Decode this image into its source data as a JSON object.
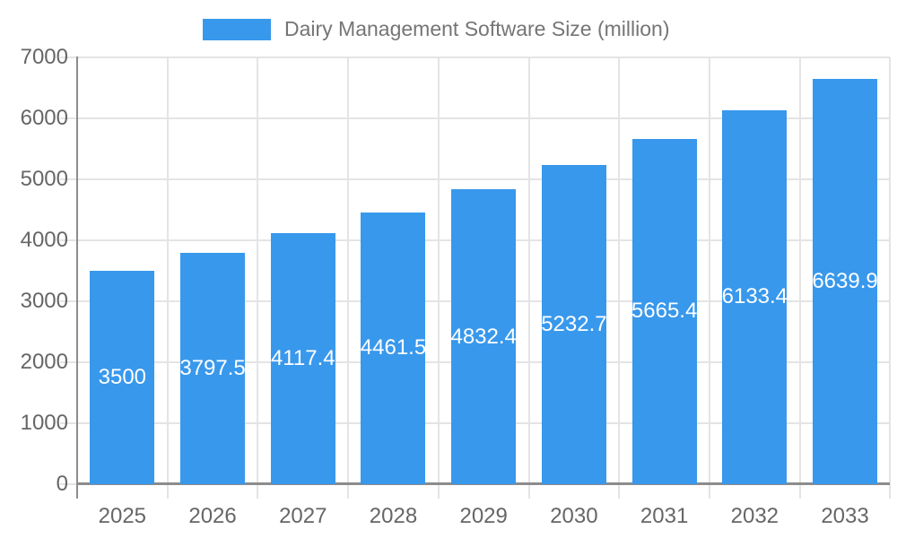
{
  "chart_data": {
    "type": "bar",
    "title": "Dairy Management Software Size (million)",
    "categories": [
      "2025",
      "2026",
      "2027",
      "2028",
      "2029",
      "2030",
      "2031",
      "2032",
      "2033"
    ],
    "values": [
      3500,
      3797.5,
      4117.4,
      4461.5,
      4832.4,
      5232.7,
      5665.4,
      6133.4,
      6639.9
    ],
    "xlabel": "",
    "ylabel": "",
    "ylim": [
      0,
      7000
    ],
    "ytick_step": 1000,
    "yticks": [
      0,
      1000,
      2000,
      3000,
      4000,
      5000,
      6000,
      7000
    ],
    "grid": true,
    "value_labels": "inside-center",
    "legend_position": "top"
  },
  "legend": {
    "label": "Dairy Management Software Size (million)"
  },
  "colors": {
    "bar": "#3898EC",
    "grid": "#E4E4E4",
    "axis": "#8C8C8C",
    "tick_label": "#666666",
    "legend_text": "#757575",
    "value_label": "#FFFFFF",
    "background": "#FFFFFF"
  }
}
